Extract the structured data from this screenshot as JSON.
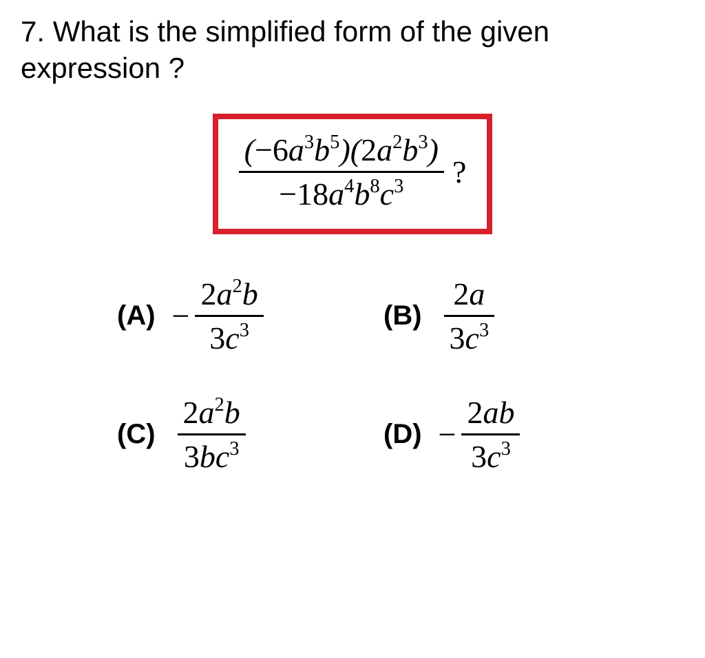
{
  "question": {
    "number": "7.",
    "text": "What is the simplified form of the given expression ?"
  },
  "expression": {
    "numerator_html": "(<span class='upright'>−6</span><span class='ital'>a</span><sup>3</sup><span class='ital'>b</span><sup>5</sup>)(<span class='upright'>2</span><span class='ital'>a</span><sup>2</sup><span class='ital'>b</span><sup>3</sup>)",
    "denominator_html": "<span class='upright'>−18</span><span class='ital'>a</span><sup>4</sup><span class='ital'>b</span><sup>8</sup><span class='ital'>c</span><sup>3</sup>",
    "trailer": "?",
    "box_border_color": "#d7202a"
  },
  "options": [
    {
      "label": "(A)",
      "prefix": "−",
      "num_html": "<span class='upright'>2</span><span class='ital'>a</span><sup>2</sup><span class='ital'>b</span>",
      "den_html": "<span class='upright'>3</span><span class='ital'>c</span><sup>3</sup>"
    },
    {
      "label": "(B)",
      "prefix": "",
      "num_html": "<span class='upright'>2</span><span class='ital'>a</span>",
      "den_html": "<span class='upright'>3</span><span class='ital'>c</span><sup>3</sup>"
    },
    {
      "label": "(C)",
      "prefix": "",
      "num_html": "<span class='upright'>2</span><span class='ital'>a</span><sup>2</sup><span class='ital'>b</span>",
      "den_html": "<span class='upright'>3</span><span class='ital'>bc</span><sup>3</sup>"
    },
    {
      "label": "(D)",
      "prefix": "−",
      "num_html": "<span class='upright'>2</span><span class='ital'>ab</span>",
      "den_html": "<span class='upright'>3</span><span class='ital'>c</span><sup>3</sup>"
    }
  ],
  "style": {
    "background_color": "#ffffff",
    "text_color": "#000000",
    "question_fontsize": 42,
    "math_fontsize": 46,
    "option_label_fontsize": 40
  }
}
